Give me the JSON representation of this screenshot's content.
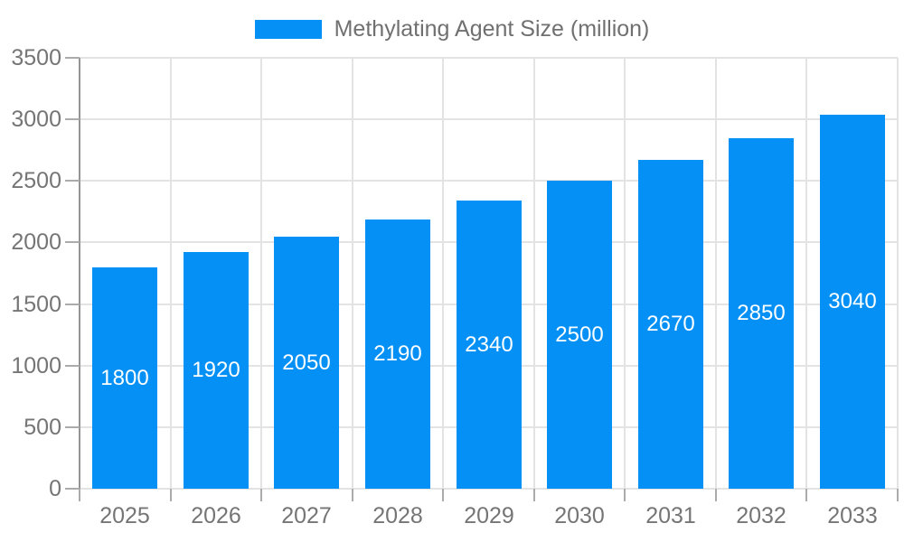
{
  "legend": {
    "label": "Methylating Agent Size (million)"
  },
  "chart_data": {
    "type": "bar",
    "title": "Methylating Agent Size (million)",
    "categories": [
      "2025",
      "2026",
      "2027",
      "2028",
      "2029",
      "2030",
      "2031",
      "2032",
      "2033"
    ],
    "values": [
      1800,
      1920,
      2050,
      2190,
      2340,
      2500,
      2670,
      2850,
      3040
    ],
    "series_name": "Methylating Agent Size (million)",
    "xlabel": "",
    "ylabel": "",
    "ylim": [
      0,
      3500
    ],
    "yticks": [
      0,
      500,
      1000,
      1500,
      2000,
      2500,
      3000,
      3500
    ],
    "grid": true,
    "legend_position": "top",
    "value_labels_inside_bars": true,
    "colors": {
      "bar": "#0590F5",
      "grid": "#e3e3e3",
      "axis_line": "#949494",
      "tick": "#ababab",
      "text": "#757575",
      "value_label": "#ffffff",
      "background": "#ffffff"
    }
  }
}
